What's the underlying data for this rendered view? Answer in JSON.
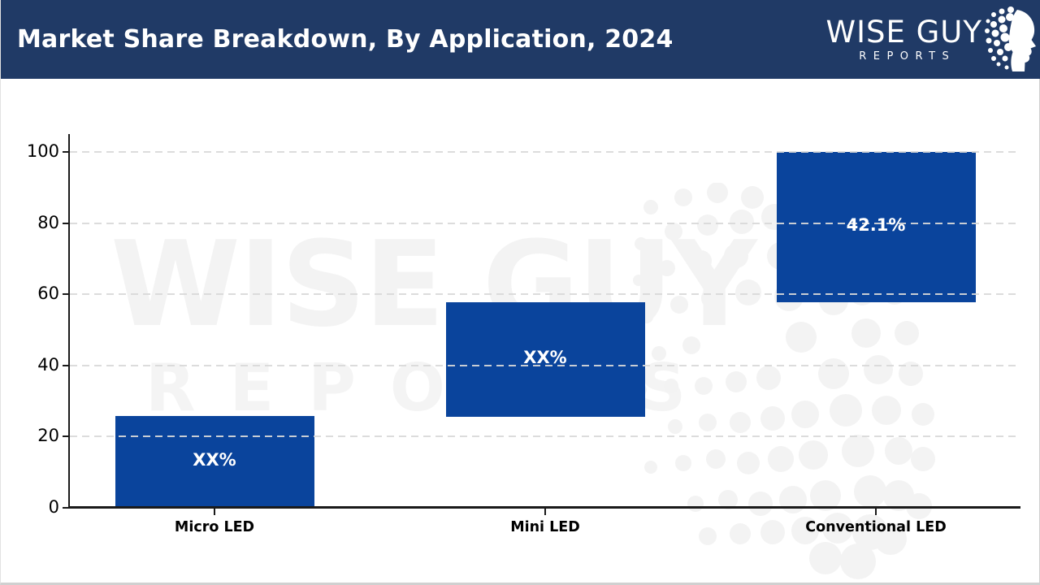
{
  "header": {
    "title": "Market Share Breakdown, By Application, 2024",
    "bg_color": "#203a66",
    "logo": {
      "line1": "WISE GUY",
      "line2": "REPORTS",
      "icon": "dotted-face-profile-icon"
    }
  },
  "watermark": {
    "line1": "WISE GUY",
    "line2": "REPORTS",
    "icon": "dotted-face-profile-watermark",
    "color": "#f3f3f3"
  },
  "chart_data": {
    "type": "bar",
    "variant": "floating-segment (waterfall-style market share)",
    "title": "Market Share Breakdown, By Application, 2024",
    "categories": [
      "Micro LED",
      "Mini LED",
      "Conventional LED"
    ],
    "segments": [
      {
        "category": "Micro LED",
        "start": 0,
        "end": 25.9,
        "label": "XX%"
      },
      {
        "category": "Mini LED",
        "start": 25.7,
        "end": 57.9,
        "label": "XX%"
      },
      {
        "category": "Conventional LED",
        "start": 57.9,
        "end": 100,
        "label": "42.1%"
      }
    ],
    "xlabel": "",
    "ylabel": "",
    "ylim": [
      0,
      100
    ],
    "yticks": [
      0,
      20,
      40,
      60,
      80,
      100
    ],
    "grid": "horizontal dashed, drawn over bars",
    "legend": "none",
    "bar_color": "#0a449c",
    "value_label_color": "#ffffff",
    "grid_color": "#d9d9d9",
    "axis_color": "#1a1a1a"
  }
}
